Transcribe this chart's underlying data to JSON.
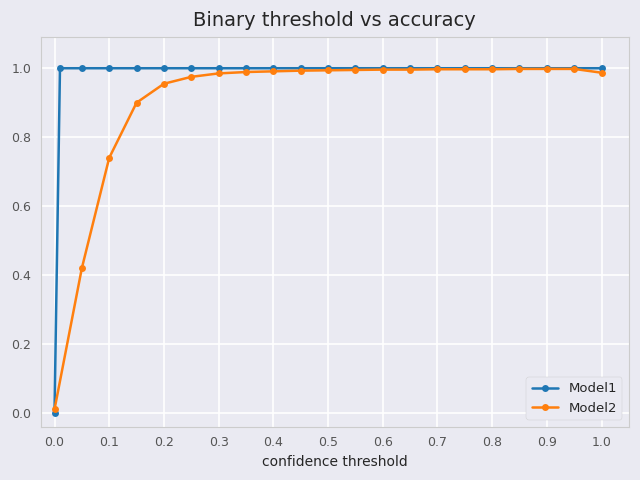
{
  "title": "Binary threshold vs accuracy",
  "xlabel": "confidence threshold",
  "model1_x": [
    0.0,
    0.01,
    0.05,
    0.1,
    0.15,
    0.2,
    0.25,
    0.3,
    0.35,
    0.4,
    0.45,
    0.5,
    0.55,
    0.6,
    0.65,
    0.7,
    0.75,
    0.8,
    0.85,
    0.9,
    0.95,
    1.0
  ],
  "model1_y": [
    0.0,
    1.0,
    1.0,
    1.0,
    1.0,
    1.0,
    1.0,
    1.0,
    1.0,
    1.0,
    1.0,
    1.0,
    1.0,
    1.0,
    1.0,
    1.0,
    1.0,
    1.0,
    1.0,
    1.0,
    1.0,
    1.0
  ],
  "model2_x": [
    0.0,
    0.05,
    0.1,
    0.15,
    0.2,
    0.25,
    0.3,
    0.35,
    0.4,
    0.45,
    0.5,
    0.55,
    0.6,
    0.65,
    0.7,
    0.75,
    0.8,
    0.85,
    0.9,
    0.95,
    1.0
  ],
  "model2_y": [
    0.01,
    0.42,
    0.74,
    0.9,
    0.955,
    0.975,
    0.985,
    0.989,
    0.991,
    0.993,
    0.994,
    0.995,
    0.996,
    0.996,
    0.997,
    0.997,
    0.997,
    0.998,
    0.998,
    0.998,
    0.987
  ],
  "color_model1": "#1f77b4",
  "color_model2": "#ff7f0e",
  "background_color": "#eaeaf2",
  "grid_color": "#ffffff",
  "title_fontsize": 14,
  "label_fontsize": 10,
  "xlim": [
    -0.025,
    1.05
  ],
  "ylim": [
    -0.04,
    1.09
  ],
  "xticks": [
    0.0,
    0.1,
    0.2,
    0.3,
    0.4,
    0.5,
    0.6,
    0.7,
    0.8,
    0.9,
    1.0
  ],
  "yticks": [
    0.0,
    0.2,
    0.4,
    0.6,
    0.8,
    1.0
  ],
  "legend_labels": [
    "Model1",
    "Model2"
  ],
  "marker": "o",
  "markersize": 5,
  "linewidth": 1.8
}
